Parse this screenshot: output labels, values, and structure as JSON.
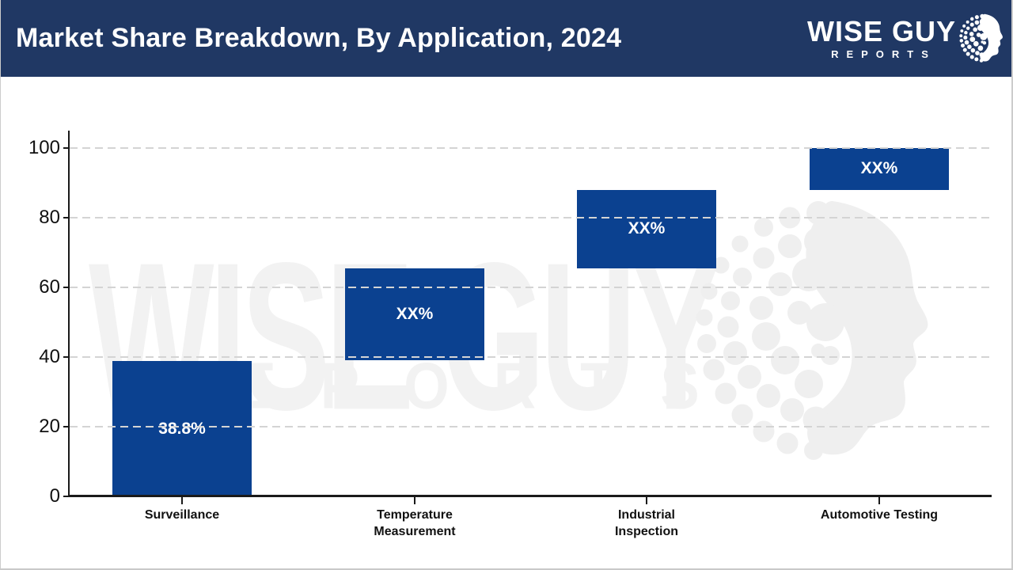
{
  "header": {
    "title": "Market Share Breakdown, By Application, 2024",
    "logo": {
      "line1": "WISE GUY",
      "line2": "REPORTS",
      "mark": "dotted-head-profile"
    }
  },
  "watermark": {
    "line1": "WISE GUY",
    "line2": "REPORTS",
    "mark": "dotted-head-profile"
  },
  "chart_data": {
    "type": "bar",
    "subtype": "floating-segment waterfall, vertical",
    "title": "Market Share Breakdown, By Application, 2024",
    "categories": [
      "Surveillance",
      "Temperature Measurement",
      "Industrial Inspection",
      "Automotive Testing"
    ],
    "category_label_lines": [
      [
        "Surveillance"
      ],
      [
        "Temperature",
        "Measurement"
      ],
      [
        "Industrial",
        "Inspection"
      ],
      [
        "Automotive Testing"
      ]
    ],
    "segments": [
      {
        "category": "Surveillance",
        "start": 0,
        "end": 38.8,
        "label": "38.8%"
      },
      {
        "category": "Temperature Measurement",
        "start": 39,
        "end": 65.5,
        "label": "XX%"
      },
      {
        "category": "Industrial Inspection",
        "start": 65.5,
        "end": 88,
        "label": "XX%"
      },
      {
        "category": "Automotive Testing",
        "start": 88,
        "end": 100,
        "label": "XX%"
      }
    ],
    "xlabel": "",
    "ylabel": "",
    "ylim": [
      0,
      100
    ],
    "yticks": [
      0,
      20,
      40,
      60,
      80,
      100
    ],
    "grid": {
      "axis": "y",
      "style": "dashed",
      "drawn_over_bars": true
    },
    "legend": false,
    "bar_color": "#0b4190",
    "value_label_color": "#ffffff"
  },
  "colors": {
    "header_bg": "#203864",
    "header_text": "#ffffff",
    "bar": "#0b4190",
    "bar_label": "#ffffff",
    "axis": "#1a1a1a",
    "grid": "#d4d4d4",
    "watermark": "#f2f2f2",
    "page_border": "#c9c9c9",
    "background": "#ffffff"
  }
}
